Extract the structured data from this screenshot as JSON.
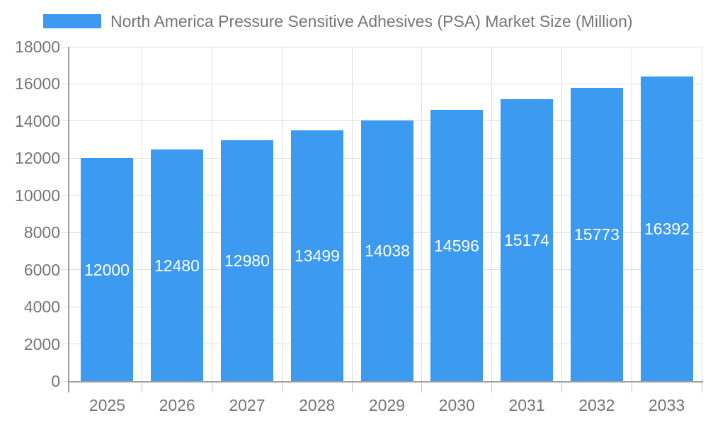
{
  "chart_data": {
    "type": "bar",
    "title": "North America Pressure Sensitive Adhesives (PSA) Market Size (Million)",
    "categories": [
      "2025",
      "2026",
      "2027",
      "2028",
      "2029",
      "2030",
      "2031",
      "2032",
      "2033"
    ],
    "values": [
      12000,
      12480,
      12980,
      13499,
      14038,
      14596,
      15174,
      15773,
      16392
    ],
    "xlabel": "",
    "ylabel": "",
    "ylim": [
      0,
      18000
    ],
    "yticks": [
      0,
      2000,
      4000,
      6000,
      8000,
      10000,
      12000,
      14000,
      16000,
      18000
    ],
    "grid": true,
    "legend_position": "top",
    "value_label_position": "inside-center"
  },
  "colors": {
    "bar": "#3C9AF0",
    "value_label": "#FFFFFF",
    "axis_text": "#757575",
    "legend_text": "#757575",
    "grid_line": "#E0E0E0",
    "axis_line": "#9E9E9E",
    "tick_mark": "#C2C2C2",
    "background": "#FFFFFF"
  }
}
